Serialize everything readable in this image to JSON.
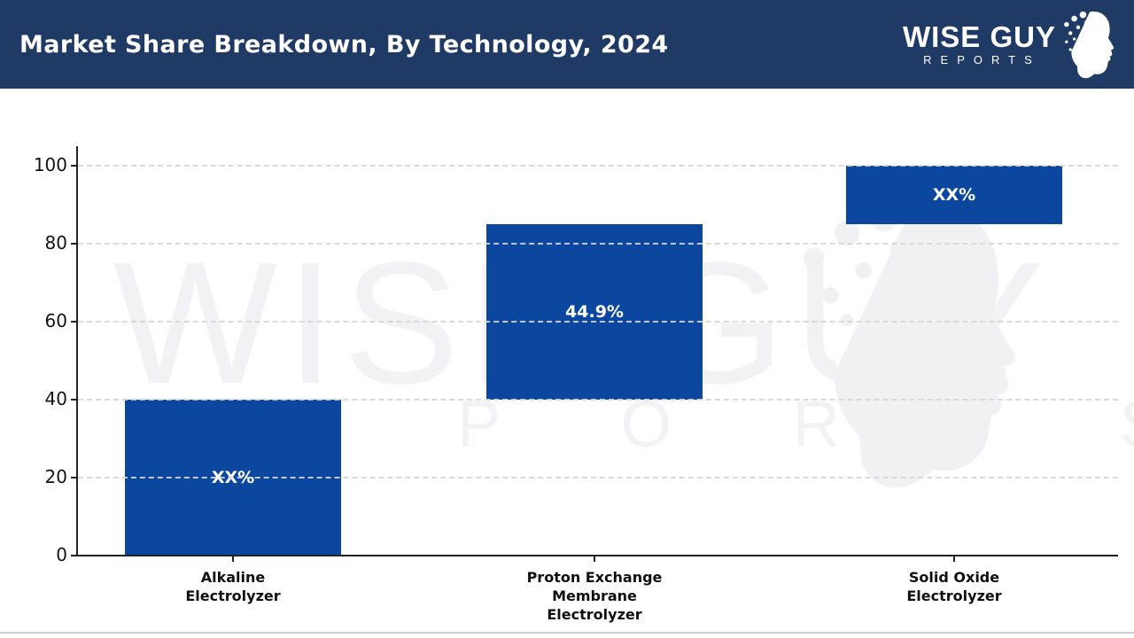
{
  "header": {
    "title": "Market Share Breakdown, By Technology, 2024",
    "logo": {
      "line1": "WISE GUY",
      "line2": "REPORTS"
    }
  },
  "watermark": {
    "line1": "WISE GUY",
    "line2": "R E P O R T S"
  },
  "chart_data": {
    "type": "bar",
    "subtype": "waterfall-floating-bars",
    "title": "Market Share Breakdown, By Technology, 2024",
    "categories": [
      "Alkaline Electrolyzer",
      "Proton Exchange Membrane Electrolyzer",
      "Solid Oxide Electrolyzer"
    ],
    "category_lines": [
      [
        "Alkaline",
        "Electrolyzer"
      ],
      [
        "Proton Exchange",
        "Membrane",
        "Electrolyzer"
      ],
      [
        "Solid Oxide",
        "Electrolyzer"
      ]
    ],
    "bars": [
      {
        "category": "Alkaline Electrolyzer",
        "start": 0,
        "end": 40,
        "label": "XX%"
      },
      {
        "category": "Proton Exchange Membrane Electrolyzer",
        "start": 40,
        "end": 84.9,
        "label": "44.9%"
      },
      {
        "category": "Solid Oxide Electrolyzer",
        "start": 84.9,
        "end": 100,
        "label": "XX%"
      }
    ],
    "yticks": [
      0,
      20,
      40,
      60,
      80,
      100
    ],
    "ylim": [
      0,
      105
    ],
    "xlabel": "",
    "ylabel": "",
    "grid": "horizontal-dashed",
    "legend": "none",
    "bar_color": "#0b479e",
    "bar_label_color": "#ffffff"
  },
  "colors": {
    "header_bg": "#203a66",
    "bar": "#0b479e",
    "grid": "#d6d6d6",
    "axis": "#222222",
    "watermark": "#f2f2f5",
    "bottom_line": "#cdcdcd"
  }
}
